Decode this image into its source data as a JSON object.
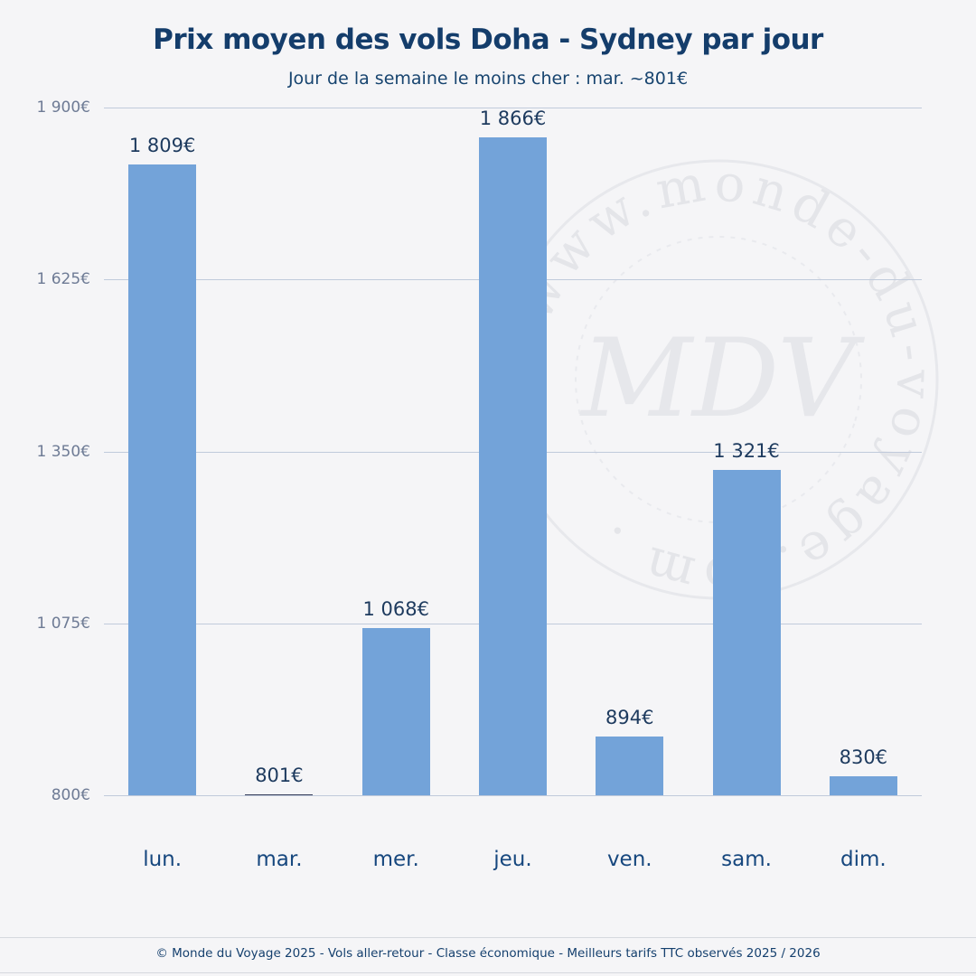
{
  "title": "Prix moyen des vols Doha - Sydney par jour",
  "subtitle": "Jour de la semaine le moins cher : mar. ~801€",
  "watermark": {
    "circle_text": "www.monde-du-voyage.com .",
    "center_text": "MDV"
  },
  "footer": "© Monde du Voyage 2025 - Vols aller-retour - Classe économique - Meilleurs tarifs TTC observés 2025 / 2026",
  "colors": {
    "background": "#f5f5f7",
    "bar": "#73a3d9",
    "accent_navy": "#143d6b",
    "gridline": "#c0cadb",
    "y_label": "#6e7b95"
  },
  "chart_data": {
    "type": "bar",
    "categories": [
      "lun.",
      "mar.",
      "mer.",
      "jeu.",
      "ven.",
      "sam.",
      "dim."
    ],
    "values": [
      1809,
      801,
      1068,
      1866,
      894,
      1321,
      830
    ],
    "value_labels": [
      "1 809€",
      "801€",
      "1 068€",
      "1 866€",
      "894€",
      "1 321€",
      "830€"
    ],
    "title": "Prix moyen des vols Doha - Sydney par jour",
    "subtitle": "Jour de la semaine le moins cher : mar. ~801€",
    "xlabel": "",
    "ylabel": "",
    "ylim": [
      800,
      1900
    ],
    "yticks": [
      1900,
      1625,
      1350,
      1075,
      800
    ],
    "ytick_labels": [
      "1 900€",
      "1 625€",
      "1 350€",
      "1 075€",
      "800€"
    ],
    "grid": true,
    "legend": false,
    "cheapest_day": "mar.",
    "cheapest_price": 801
  }
}
